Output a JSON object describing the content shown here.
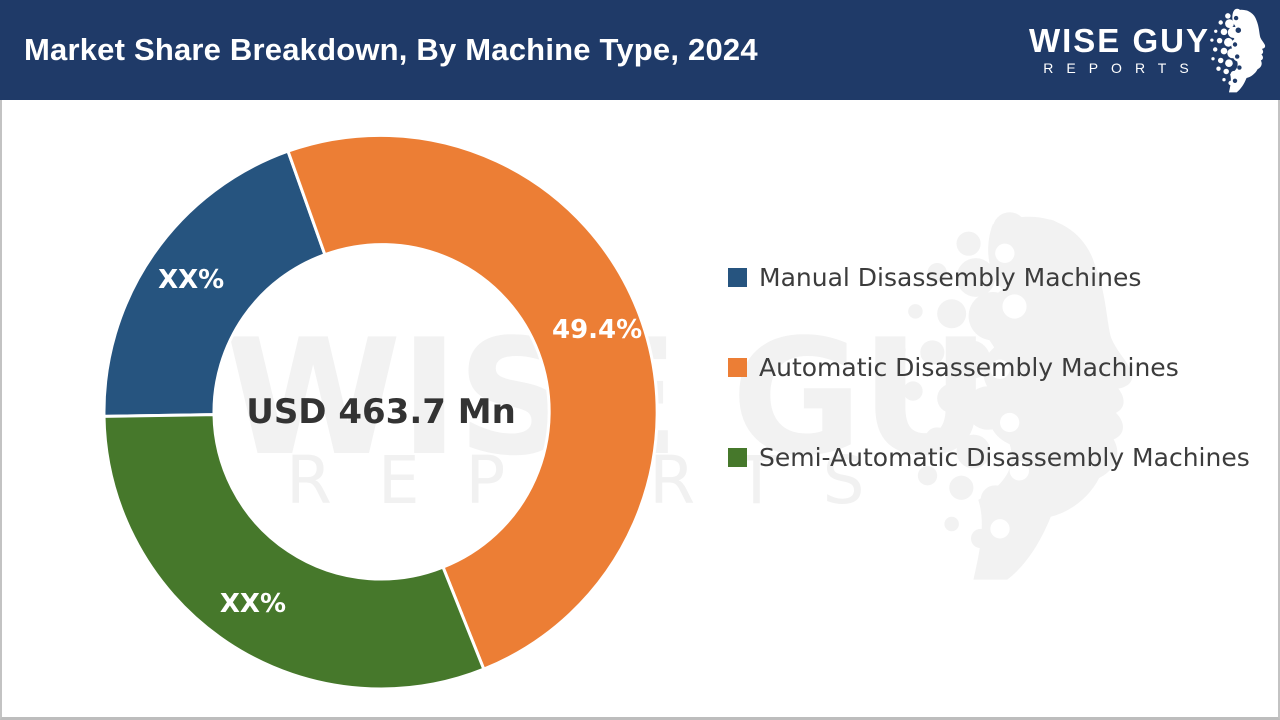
{
  "header": {
    "title": "Market Share Breakdown, By Machine Type, 2024",
    "bg_color": "#1f3a68",
    "text_color": "#ffffff",
    "logo": {
      "title": "WISE GUY",
      "subtitle": "REPORTS"
    }
  },
  "watermark": {
    "big_text": "WISE GUY",
    "sub_text": "REPORTS",
    "color": "#f2f2f2"
  },
  "chart_data": {
    "type": "donut",
    "title": "Market Share Breakdown, By Machine Type, 2024",
    "center_label": "USD 463.7 Mn",
    "total_value_usd_mn": 463.7,
    "start_angle_deg": 180.9,
    "direction": "clockwise",
    "slice_gap_color": "#ffffff",
    "legend_position": "right",
    "series": [
      {
        "name": "Manual Disassembly Machines",
        "pct": 19.8,
        "label": "XX%",
        "color": "#26547f"
      },
      {
        "name": "Automatic Disassembly Machines",
        "pct": 49.4,
        "label": "49.4%",
        "color": "#ec7e35"
      },
      {
        "name": "Semi-Automatic Disassembly Machines",
        "pct": 30.8,
        "label": "XX%",
        "color": "#46782b"
      }
    ]
  }
}
